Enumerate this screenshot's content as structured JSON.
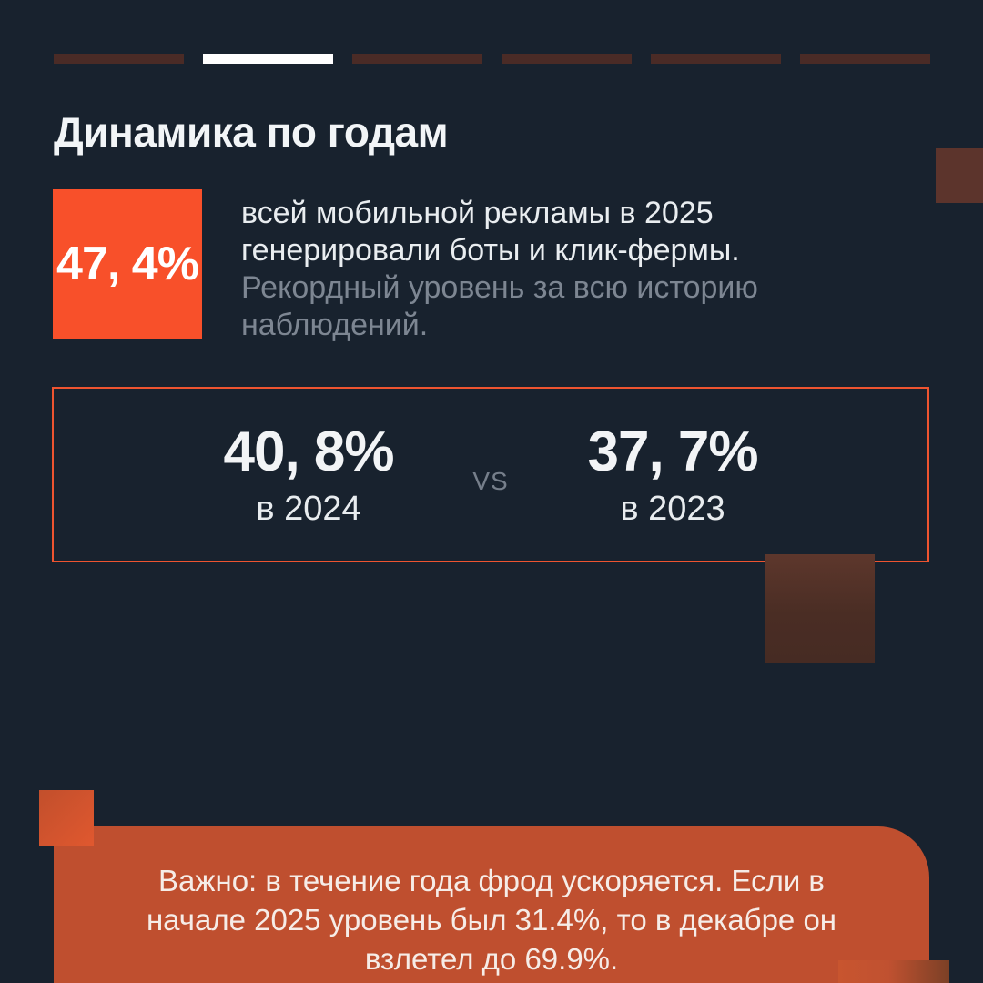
{
  "page": {
    "background": "#18222e",
    "accent": "#f8502a",
    "callout_background": "#bf4f2f",
    "inactive_bar_color": "#4a2b26",
    "active_bar_color": "#ffffff"
  },
  "progress": {
    "segment_count": 6,
    "active_index": 1,
    "segments": [
      "inactive",
      "active",
      "inactive",
      "inactive",
      "inactive",
      "inactive"
    ]
  },
  "header": {
    "title": "Динамика по годам"
  },
  "stat": {
    "badge_value": "47, 4%",
    "badge_color": "#f8502a",
    "text_primary": "всей мобильной рекламы в 2025 генерировали боты и клик-фермы.",
    "text_secondary": "Рекордный уровень за всю историю наблюдений."
  },
  "comparison": {
    "border_color": "#ee5430",
    "left": {
      "value": "40, 8%",
      "label": "в 2024"
    },
    "separator": "VS",
    "right": {
      "value": "37, 7%",
      "label": "в 2023"
    }
  },
  "callout": {
    "text": "Важно: в течение года фрод ускоряется. Если в начале 2025 уровень был 31.4%, то в декабре он взлетел до 69.9%."
  }
}
